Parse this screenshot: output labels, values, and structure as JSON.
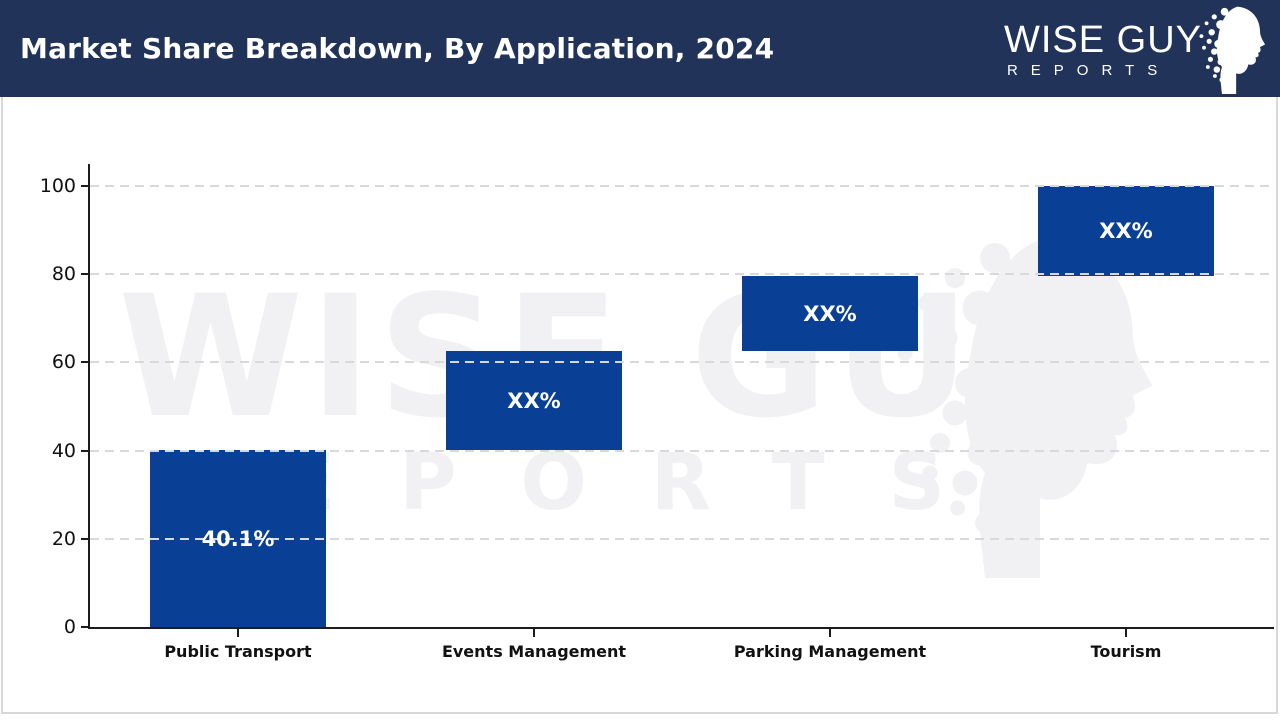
{
  "header": {
    "title": "Market Share Breakdown, By Application, 2024",
    "logo": {
      "name": "WISE GUY",
      "tagline": "REPORTS"
    }
  },
  "watermark": {
    "line1": "WISE GUY",
    "line2": "REPORTS"
  },
  "chart_data": {
    "type": "bar",
    "variant": "waterfall",
    "title": "Market Share Breakdown, By Application, 2024",
    "categories": [
      "Public Transport",
      "Events Management",
      "Parking Management",
      "Tourism"
    ],
    "segments": [
      {
        "category": "Public Transport",
        "start": 0,
        "end": 40.1,
        "label": "40.1%"
      },
      {
        "category": "Events Management",
        "start": 40.1,
        "end": 62.5,
        "label": "XX%"
      },
      {
        "category": "Parking Management",
        "start": 62.5,
        "end": 79.5,
        "label": "XX%"
      },
      {
        "category": "Tourism",
        "start": 79.5,
        "end": 100,
        "label": "XX%"
      }
    ],
    "yticks": [
      0,
      20,
      40,
      60,
      80,
      100
    ],
    "ylim": [
      0,
      105
    ],
    "xlabel": "",
    "ylabel": "",
    "grid": "dashed-horizontal",
    "legend": "none"
  },
  "colors": {
    "header_bg": "#22335a",
    "bar": "#0a3f96",
    "bar_label": "#ffffff",
    "axis": "#1c1c1c",
    "grid": "#d9d9d9",
    "tick_text": "#111111",
    "title_text": "#ffffff",
    "watermark": "#f1f1f4",
    "frame": "#d8d8d8"
  }
}
